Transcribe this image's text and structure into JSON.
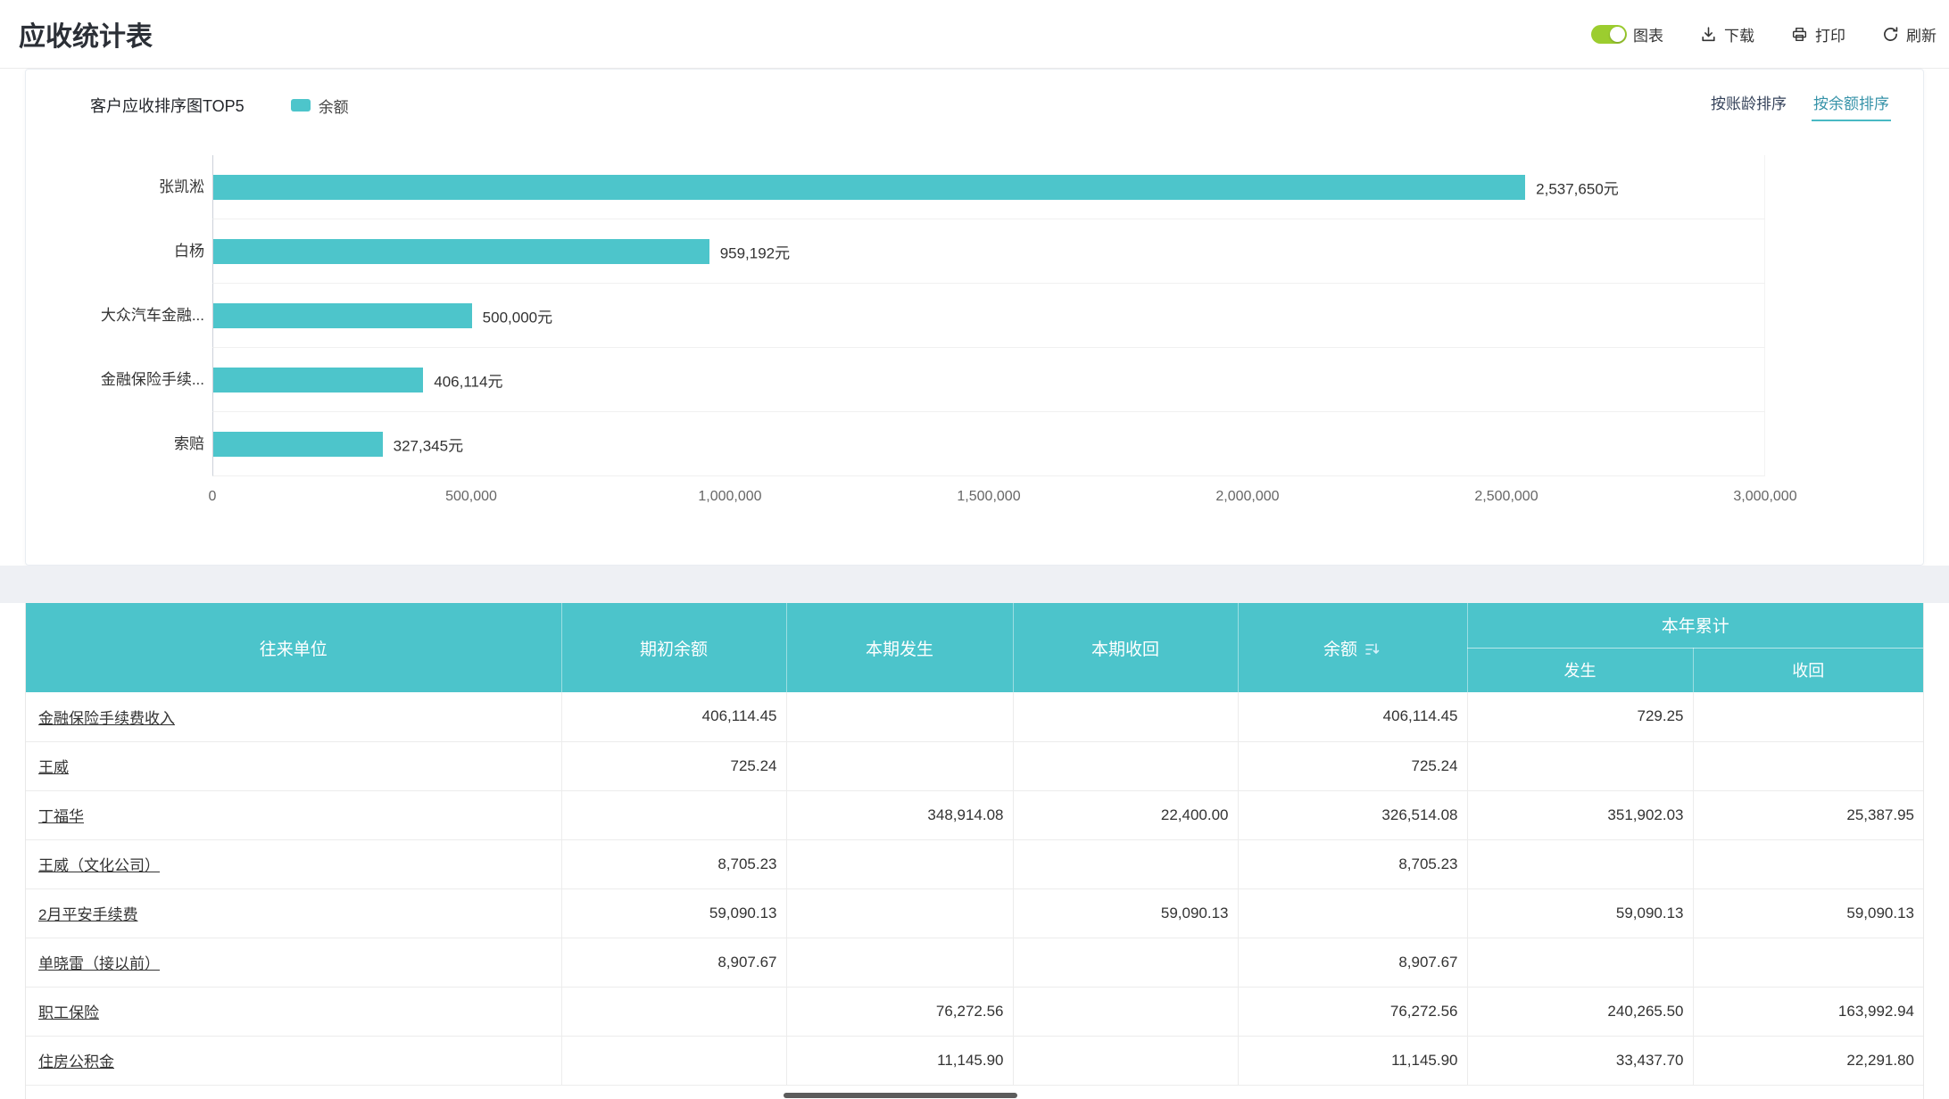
{
  "page": {
    "title": "应收统计表"
  },
  "toolbar": {
    "toggle_label": "图表",
    "download_label": "下载",
    "print_label": "打印",
    "refresh_label": "刷新"
  },
  "chart": {
    "title": "客户应收排序图TOP5",
    "legend": "余额",
    "sort_buttons": [
      {
        "label": "按账龄排序",
        "active": false
      },
      {
        "label": "按余额排序",
        "active": true
      }
    ]
  },
  "chart_data": {
    "type": "bar",
    "orientation": "horizontal",
    "title": "客户应收排序图TOP5",
    "legend_entries": [
      "余额"
    ],
    "categories": [
      "张凯淞",
      "白杨",
      "大众汽车金融...",
      "金融保险手续...",
      "索赔"
    ],
    "values": [
      2537650,
      959192,
      500000,
      406114,
      327345
    ],
    "value_labels": [
      "2,537,650元",
      "959,192元",
      "500,000元",
      "406,114元",
      "327,345元"
    ],
    "xlim": [
      0,
      3000000
    ],
    "x_ticks": [
      "0",
      "500,000",
      "1,000,000",
      "1,500,000",
      "2,000,000",
      "2,500,000",
      "3,000,000"
    ],
    "grid": true,
    "bar_color": "#4dc5cb"
  },
  "table": {
    "headers": {
      "counterparty": "往来单位",
      "beginning_balance": "期初余额",
      "current_occurred": "本期发生",
      "current_recovered": "本期收回",
      "balance": "余额",
      "ytd": "本年累计",
      "ytd_occurred": "发生",
      "ytd_recovered": "收回"
    },
    "rows": [
      {
        "name": "金融保险手续费收入",
        "beginning": "406,114.45",
        "occurred": "",
        "recovered": "",
        "balance": "406,114.45",
        "ytd_occurred": "729.25",
        "ytd_recovered": ""
      },
      {
        "name": "王威",
        "beginning": "725.24",
        "occurred": "",
        "recovered": "",
        "balance": "725.24",
        "ytd_occurred": "",
        "ytd_recovered": ""
      },
      {
        "name": "丁福华",
        "beginning": "",
        "occurred": "348,914.08",
        "recovered": "22,400.00",
        "balance": "326,514.08",
        "ytd_occurred": "351,902.03",
        "ytd_recovered": "25,387.95"
      },
      {
        "name": "王威（文化公司）",
        "beginning": "8,705.23",
        "occurred": "",
        "recovered": "",
        "balance": "8,705.23",
        "ytd_occurred": "",
        "ytd_recovered": ""
      },
      {
        "name": "2月平安手续费",
        "beginning": "59,090.13",
        "occurred": "",
        "recovered": "59,090.13",
        "balance": "",
        "ytd_occurred": "59,090.13",
        "ytd_recovered": "59,090.13"
      },
      {
        "name": "单晓雷（接以前）",
        "beginning": "8,907.67",
        "occurred": "",
        "recovered": "",
        "balance": "8,907.67",
        "ytd_occurred": "",
        "ytd_recovered": ""
      },
      {
        "name": "职工保险",
        "beginning": "",
        "occurred": "76,272.56",
        "recovered": "",
        "balance": "76,272.56",
        "ytd_occurred": "240,265.50",
        "ytd_recovered": "163,992.94"
      },
      {
        "name": "住房公积金",
        "beginning": "",
        "occurred": "11,145.90",
        "recovered": "",
        "balance": "11,145.90",
        "ytd_occurred": "33,437.70",
        "ytd_recovered": "22,291.80"
      }
    ]
  },
  "colors": {
    "accent": "#4dc5cb",
    "toggle_on": "#9ccd2f",
    "header_text": "#ffffff",
    "body_text": "#333333"
  }
}
